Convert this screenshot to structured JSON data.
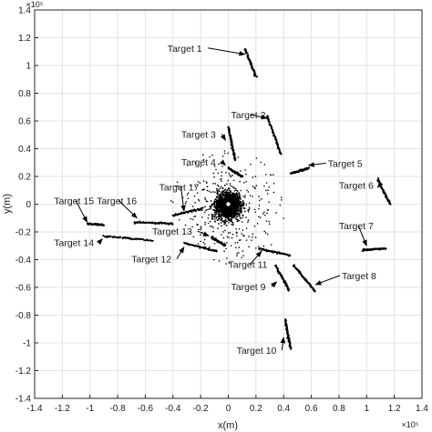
{
  "chart_data": {
    "type": "scatter",
    "title": "",
    "xlabel": "x(m)",
    "ylabel": "y(m)",
    "x_exponent": "×10⁵",
    "y_exponent": "×10⁵",
    "xlim": [
      -1.4,
      1.4
    ],
    "ylim": [
      -1.4,
      1.4
    ],
    "grid": true,
    "x_ticks": [
      "-1.4",
      "-1.2",
      "-1",
      "-0.8",
      "-0.6",
      "-0.4",
      "-0.2",
      "0",
      "0.2",
      "0.4",
      "0.6",
      "0.8",
      "1",
      "1.2",
      "1.4"
    ],
    "y_ticks": [
      "1.4",
      "1.2",
      "1",
      "0.8",
      "0.6",
      "0.4",
      "0.2",
      "0",
      "-0.2",
      "-0.4",
      "-0.6",
      "-0.8",
      "-1",
      "-1.2",
      "-1.4"
    ],
    "x_tick_values": [
      -1.4,
      -1.2,
      -1.0,
      -0.8,
      -0.6,
      -0.4,
      -0.2,
      0,
      0.2,
      0.4,
      0.6,
      0.8,
      1.0,
      1.2,
      1.4
    ],
    "y_tick_values": [
      1.4,
      1.2,
      1.0,
      0.8,
      0.6,
      0.4,
      0.2,
      0,
      -0.2,
      -0.4,
      -0.6,
      -0.8,
      -1.0,
      -1.2,
      -1.4
    ],
    "marker_color": "#000000",
    "origin_marker_color": "#ffffff",
    "clutter": {
      "center": [
        0,
        -0.01
      ],
      "dense_radius": 0.09,
      "sparse_radius": 0.35
    },
    "tracks": [
      {
        "name": "Target 1",
        "start": [
          0.12,
          1.12
        ],
        "end": [
          0.2,
          0.92
        ]
      },
      {
        "name": "Target 2",
        "start": [
          0.28,
          0.64
        ],
        "end": [
          0.38,
          0.36
        ]
      },
      {
        "name": "Target 3",
        "start": [
          0.0,
          0.56
        ],
        "end": [
          0.05,
          0.32
        ]
      },
      {
        "name": "Target 4",
        "start": [
          0.0,
          0.26
        ],
        "end": [
          0.1,
          0.2
        ]
      },
      {
        "name": "Target 5",
        "start": [
          0.45,
          0.22
        ],
        "end": [
          0.58,
          0.26
        ]
      },
      {
        "name": "Target 6",
        "start": [
          1.08,
          0.18
        ],
        "end": [
          1.17,
          0.0
        ]
      },
      {
        "name": "Target 7",
        "start": [
          0.97,
          -0.33
        ],
        "end": [
          1.14,
          -0.32
        ]
      },
      {
        "name": "Target 8",
        "start": [
          0.47,
          -0.44
        ],
        "end": [
          0.63,
          -0.63
        ]
      },
      {
        "name": "Target 9",
        "start": [
          0.34,
          -0.44
        ],
        "end": [
          0.44,
          -0.62
        ]
      },
      {
        "name": "Target 10",
        "start": [
          0.41,
          -0.83
        ],
        "end": [
          0.45,
          -1.04
        ]
      },
      {
        "name": "Target 11",
        "start": [
          0.22,
          -0.32
        ],
        "end": [
          0.45,
          -0.37
        ]
      },
      {
        "name": "Target 12",
        "start": [
          -0.32,
          -0.28
        ],
        "end": [
          -0.08,
          -0.34
        ]
      },
      {
        "name": "Target 13",
        "start": [
          -0.12,
          -0.24
        ],
        "end": [
          -0.02,
          -0.3
        ]
      },
      {
        "name": "Target 14",
        "start": [
          -0.9,
          -0.23
        ],
        "end": [
          -0.55,
          -0.26
        ]
      },
      {
        "name": "Target 15",
        "start": [
          -1.02,
          -0.14
        ],
        "end": [
          -0.9,
          -0.15
        ]
      },
      {
        "name": "Target 16",
        "start": [
          -0.68,
          -0.13
        ],
        "end": [
          -0.4,
          -0.14
        ]
      },
      {
        "name": "Target 17",
        "start": [
          -0.4,
          -0.08
        ],
        "end": [
          -0.18,
          -0.03
        ]
      }
    ],
    "annotations": [
      {
        "label": "Target 1",
        "text_pos": [
          -0.44,
          1.1
        ],
        "arrow_to": [
          0.12,
          1.08
        ]
      },
      {
        "label": "Target 2",
        "text_pos": [
          0.02,
          0.62
        ],
        "arrow_to": [
          0.28,
          0.62
        ]
      },
      {
        "label": "Target 3",
        "text_pos": [
          -0.34,
          0.48
        ],
        "arrow_to": [
          -0.02,
          0.46
        ]
      },
      {
        "label": "Target 4",
        "text_pos": [
          -0.34,
          0.28
        ],
        "arrow_to": [
          -0.02,
          0.28
        ]
      },
      {
        "label": "Target 5",
        "text_pos": [
          0.72,
          0.27
        ],
        "arrow_to": [
          0.58,
          0.28
        ]
      },
      {
        "label": "Target 6",
        "text_pos": [
          0.8,
          0.11
        ],
        "arrow_to": [
          1.08,
          0.12
        ]
      },
      {
        "label": "Target 7",
        "text_pos": [
          0.8,
          -0.18
        ],
        "arrow_to": [
          1.0,
          -0.3
        ]
      },
      {
        "label": "Target 8",
        "text_pos": [
          0.82,
          -0.54
        ],
        "arrow_to": [
          0.63,
          -0.58
        ]
      },
      {
        "label": "Target 9",
        "text_pos": [
          0.02,
          -0.62
        ],
        "arrow_to": [
          0.35,
          -0.56
        ]
      },
      {
        "label": "Target 10",
        "text_pos": [
          0.06,
          -1.08
        ],
        "arrow_to": [
          0.4,
          -0.96
        ]
      },
      {
        "label": "Target 11",
        "text_pos": [
          0.0,
          -0.46
        ],
        "arrow_to": [
          0.24,
          -0.34
        ]
      },
      {
        "label": "Target 12",
        "text_pos": [
          -0.7,
          -0.42
        ],
        "arrow_to": [
          -0.32,
          -0.31
        ]
      },
      {
        "label": "Target 13",
        "text_pos": [
          -0.55,
          -0.22
        ],
        "arrow_to": [
          -0.14,
          -0.23
        ]
      },
      {
        "label": "Target 14",
        "text_pos": [
          -1.26,
          -0.3
        ],
        "arrow_to": [
          -0.91,
          -0.25
        ]
      },
      {
        "label": "Target 15",
        "text_pos": [
          -1.26,
          0.0
        ],
        "arrow_to": [
          -1.02,
          -0.13
        ]
      },
      {
        "label": "Target 16",
        "text_pos": [
          -0.95,
          0.0
        ],
        "arrow_to": [
          -0.66,
          -0.1
        ]
      },
      {
        "label": "Target 17",
        "text_pos": [
          -0.5,
          0.1
        ],
        "arrow_to": [
          -0.32,
          -0.05
        ]
      }
    ]
  }
}
